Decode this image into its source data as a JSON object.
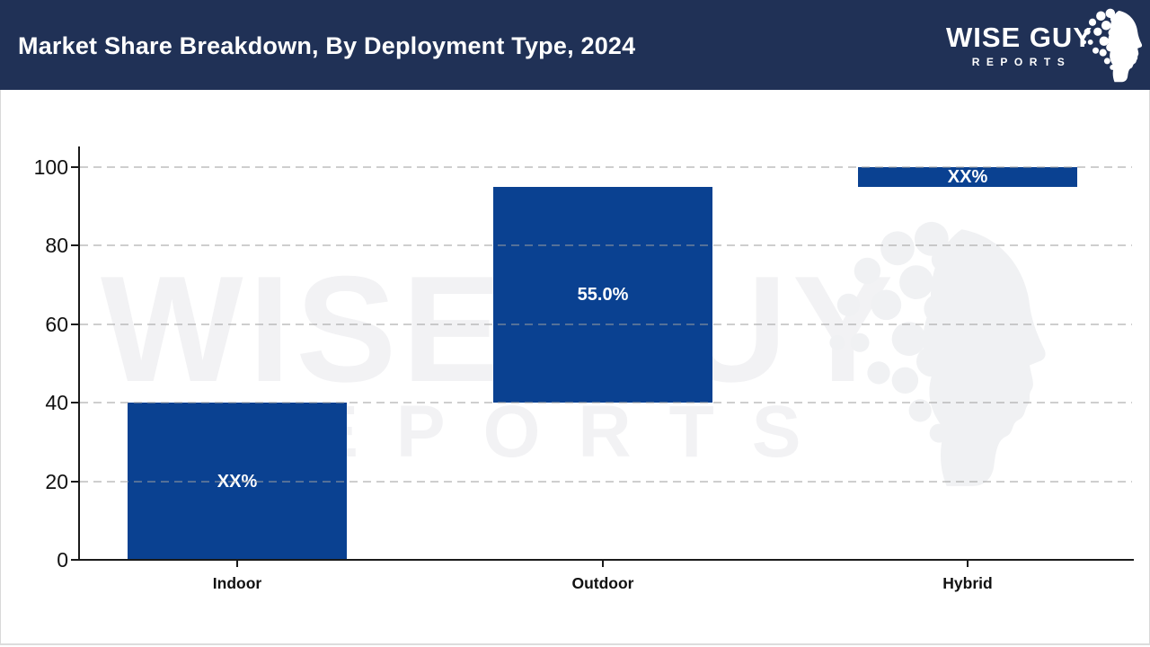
{
  "header": {
    "title": "Market Share Breakdown, By Deployment Type, 2024",
    "bg_color": "#203156",
    "logo": {
      "line1": "WISE GUY",
      "line2": "REPORTS"
    }
  },
  "watermark": {
    "line1": "WISE GUY",
    "line2": "REPORTS",
    "color": "#f2f2f4"
  },
  "chart_data": {
    "type": "bar",
    "subtype": "waterfall",
    "title": "Market Share Breakdown, By Deployment Type, 2024",
    "categories": [
      "Indoor",
      "Outdoor",
      "Hybrid"
    ],
    "series": [
      {
        "name": "Market Share (%)",
        "values": [
          40,
          55,
          5
        ],
        "starts": [
          0,
          40,
          95
        ],
        "bar_labels": [
          "XX%",
          "55.0%",
          "XX%"
        ]
      }
    ],
    "xlabel": "",
    "ylabel": "",
    "ylim": [
      0,
      105
    ],
    "yticks": [
      0,
      20,
      40,
      60,
      80,
      100
    ],
    "grid": "horizontal-dashed",
    "legend": "none",
    "bar_color": "#0a4191",
    "bar_label_color": "#ffffff",
    "axis_color": "#1a1a1a",
    "gridline_color": "#c9c9c9"
  }
}
